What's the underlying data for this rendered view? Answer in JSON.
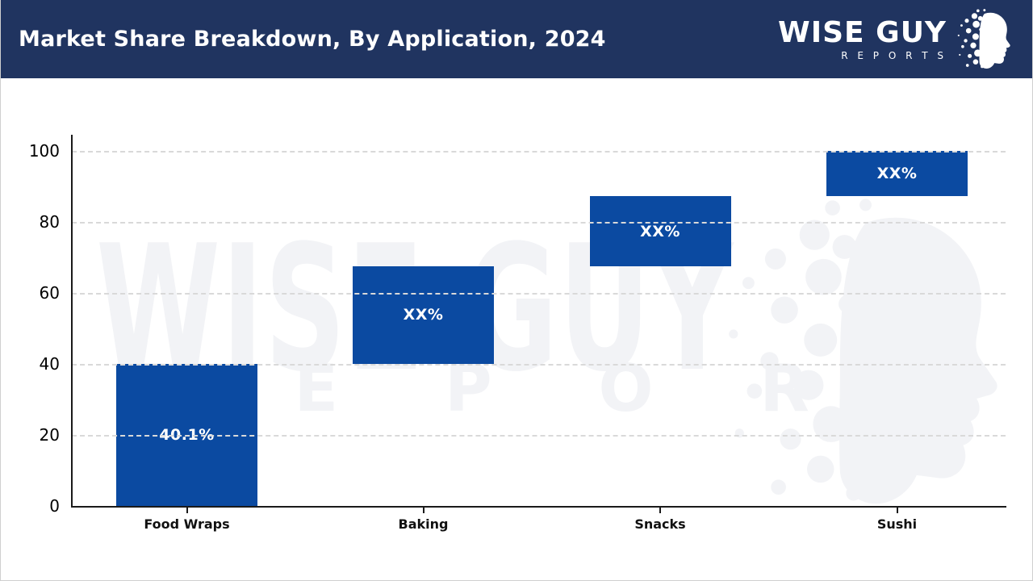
{
  "header": {
    "title": "Market Share Breakdown, By Application, 2024",
    "logo": {
      "brand_line1": "WISE GUY",
      "brand_line2": "R E P O R T S"
    }
  },
  "watermark": {
    "line1": "WISE GUY",
    "line2": "R E P O R T S"
  },
  "chart_data": {
    "type": "bar",
    "variant": "waterfall",
    "title": "Market Share Breakdown, By Application, 2024",
    "categories": [
      "Food Wraps",
      "Baking",
      "Snacks",
      "Sushi"
    ],
    "segments": [
      {
        "category": "Food Wraps",
        "start": 0,
        "end": 40.1,
        "label": "40.1%"
      },
      {
        "category": "Baking",
        "start": 40.1,
        "end": 67.5,
        "label": "XX%"
      },
      {
        "category": "Snacks",
        "start": 67.5,
        "end": 87.2,
        "label": "XX%"
      },
      {
        "category": "Sushi",
        "start": 87.2,
        "end": 100,
        "label": "XX%"
      }
    ],
    "yticks": [
      0,
      20,
      40,
      60,
      80,
      100
    ],
    "ylim": [
      0,
      105
    ],
    "grid": "horizontal dashed",
    "legend_position": "none"
  },
  "colors": {
    "header_bg": "#203460",
    "bar": "#0b4aa1",
    "grid": "#d9d9d9",
    "axis": "#1a1a1a",
    "watermark": "#f2f3f6",
    "title_text": "#ffffff",
    "bar_label_text": "#ffffff"
  }
}
